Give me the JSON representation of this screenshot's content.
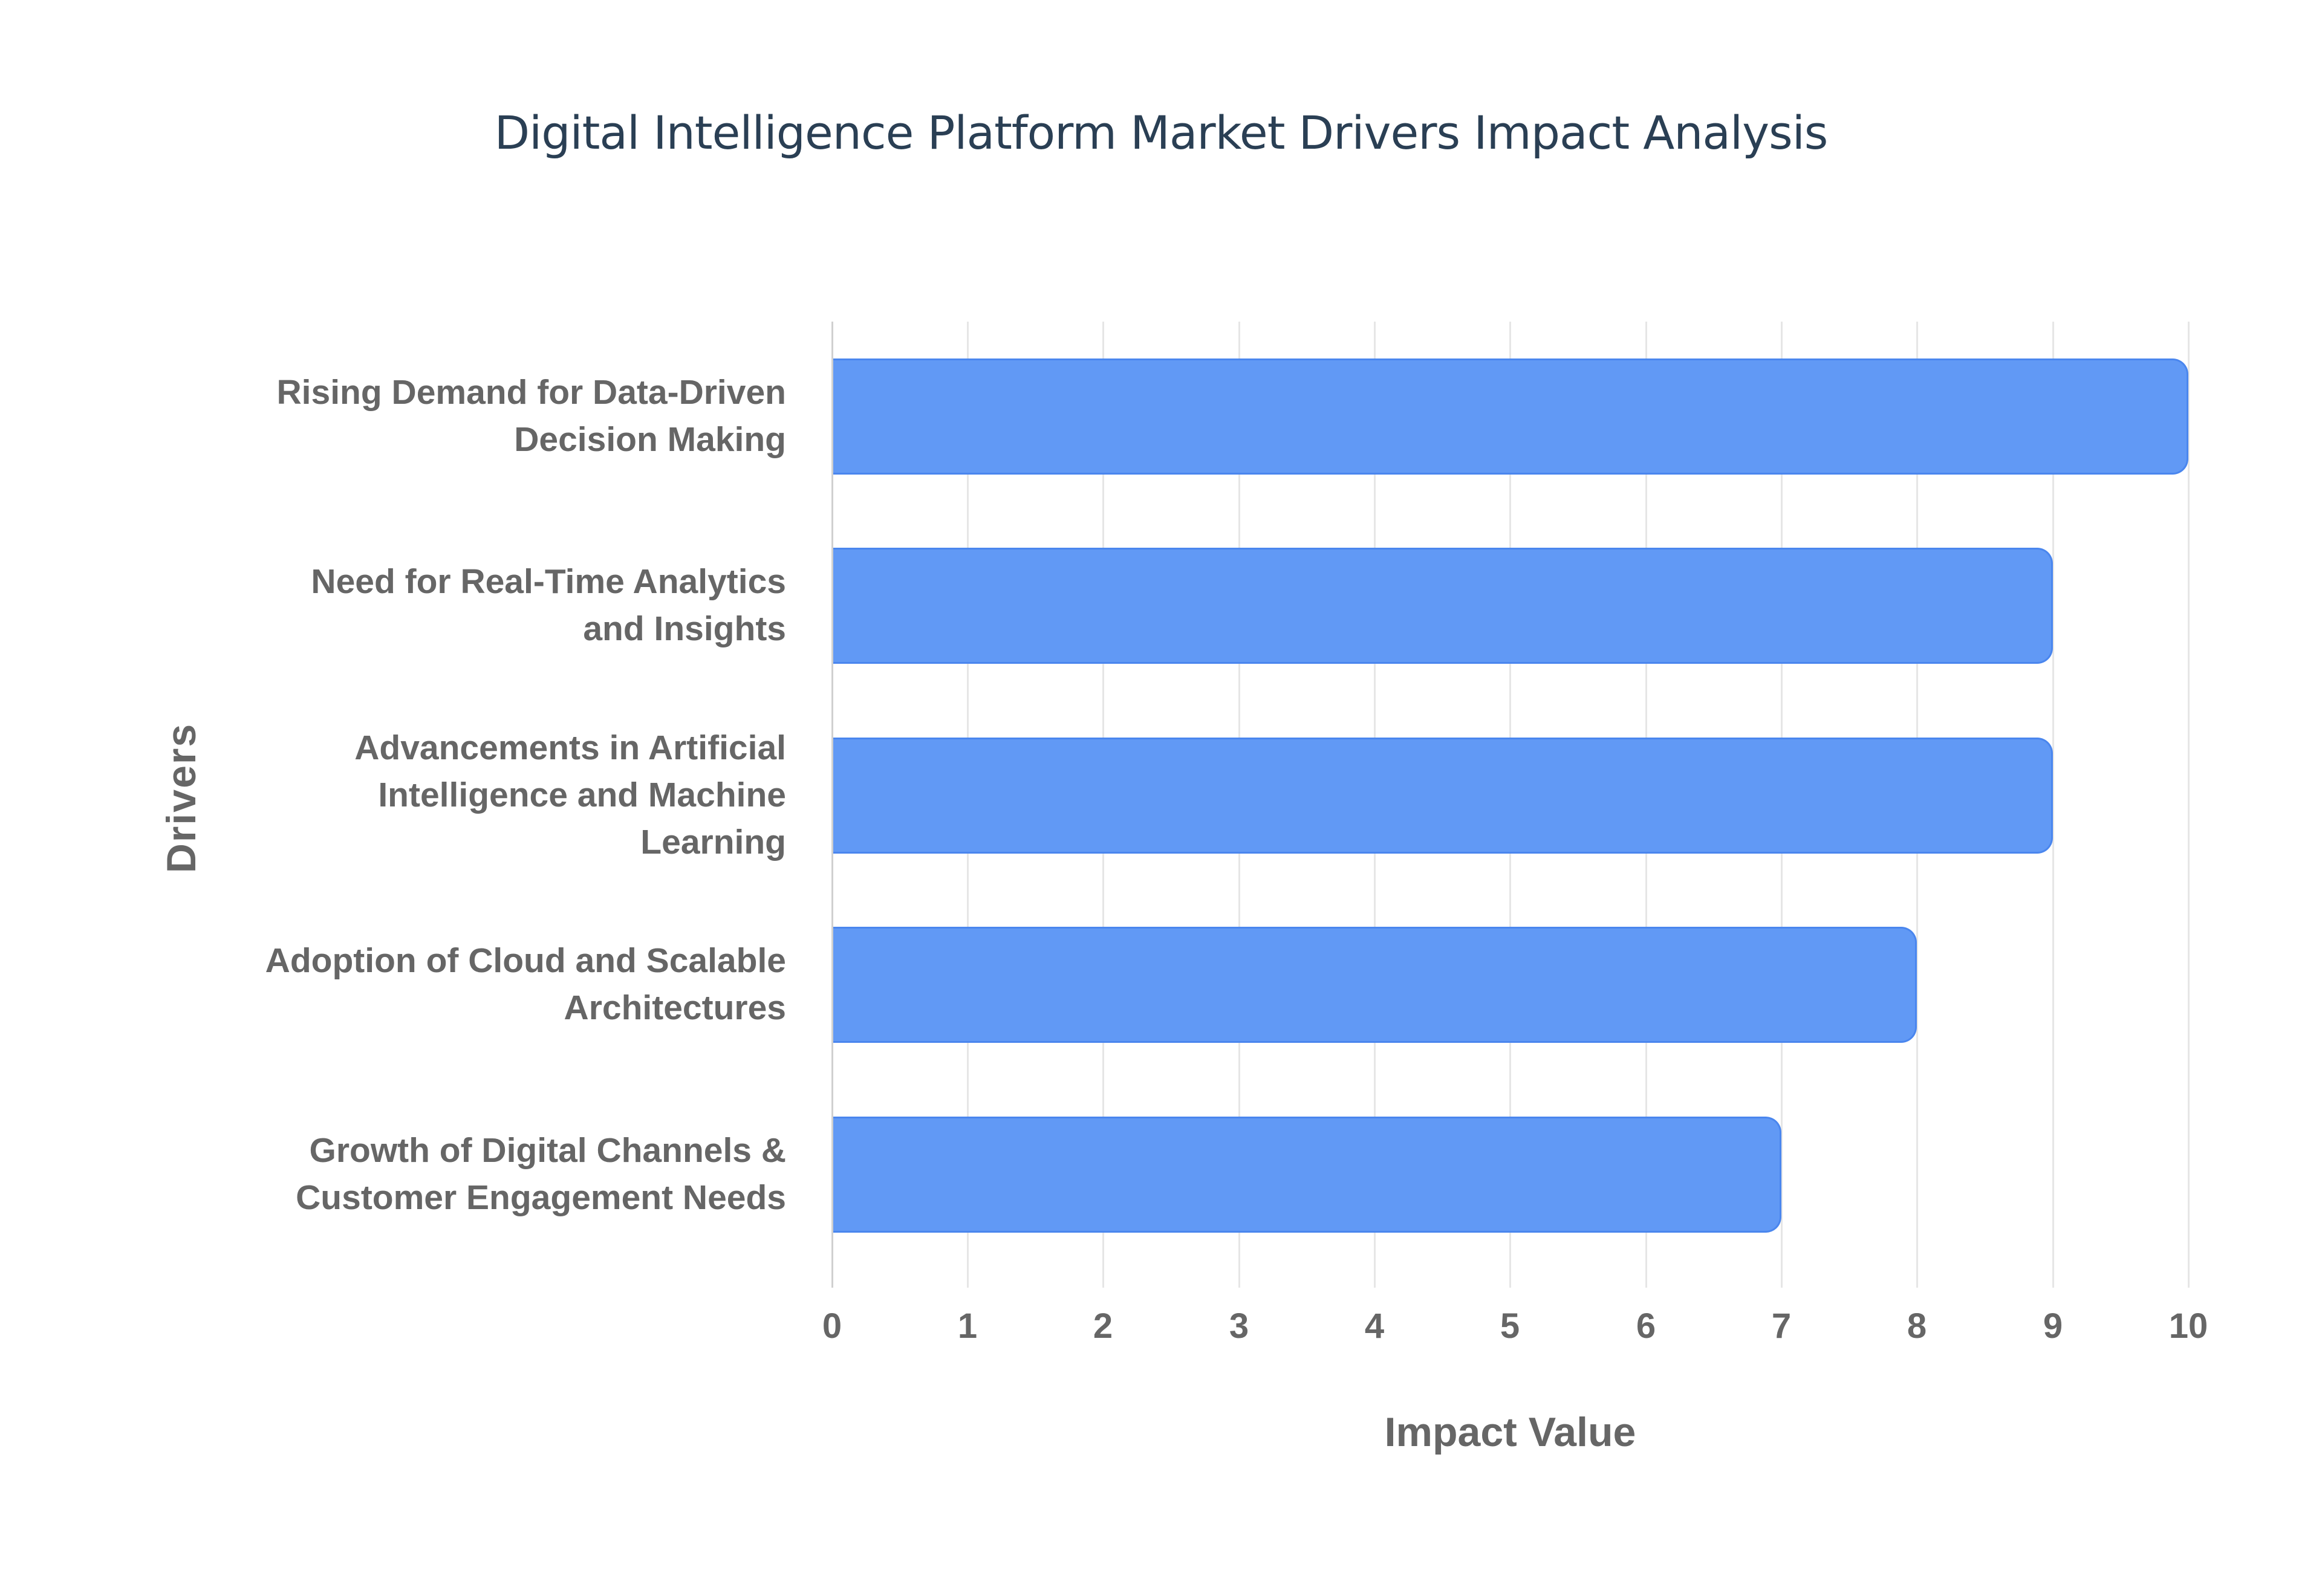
{
  "chart_data": {
    "type": "bar",
    "orientation": "horizontal",
    "title": "Digital Intelligence Platform Market Drivers Impact Analysis",
    "xlabel": "Impact Value",
    "ylabel": "Drivers",
    "xlim": [
      0,
      10
    ],
    "xticks": [
      "0",
      "1",
      "2",
      "3",
      "4",
      "5",
      "6",
      "7",
      "8",
      "9",
      "10"
    ],
    "grid": true,
    "legend": "none",
    "bar_color": "#6199f5",
    "categories": [
      "Rising Demand for Data-Driven Decision Making",
      "Need for Real-Time Analytics and Insights",
      "Advancements in Artificial Intelligence and Machine Learning",
      "Adoption of Cloud and Scalable Architectures",
      "Growth of Digital Channels & Customer Engagement Needs"
    ],
    "values": [
      10,
      9,
      9,
      8,
      7
    ]
  },
  "labels": {
    "title": "Digital Intelligence Platform Market Drivers Impact Analysis",
    "xlabel": "Impact Value",
    "ylabel": "Drivers",
    "bars": [
      {
        "line1": "Rising Demand for Data-Driven",
        "line2": "Decision Making",
        "line3": ""
      },
      {
        "line1": "Need for Real-Time Analytics",
        "line2": "and Insights",
        "line3": ""
      },
      {
        "line1": "Advancements in Artificial",
        "line2": "Intelligence and Machine",
        "line3": "Learning"
      },
      {
        "line1": "Adoption of Cloud and Scalable",
        "line2": "Architectures",
        "line3": ""
      },
      {
        "line1": "Growth of Digital Channels &",
        "line2": "Customer Engagement Needs",
        "line3": ""
      }
    ],
    "ticks": [
      "0",
      "1",
      "2",
      "3",
      "4",
      "5",
      "6",
      "7",
      "8",
      "9",
      "10"
    ]
  }
}
